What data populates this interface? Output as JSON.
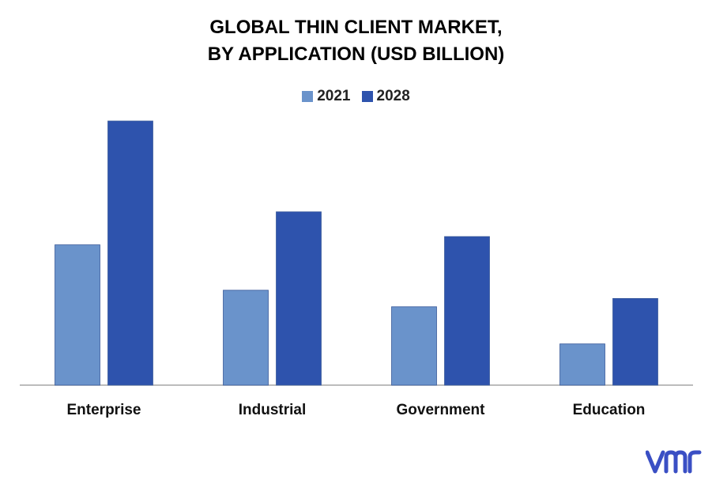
{
  "chart_data": {
    "type": "bar",
    "title_lines": [
      "GLOBAL THIN CLIENT MARKET,",
      "BY APPLICATION (USD BILLION)"
    ],
    "categories": [
      "Enterprise",
      "Industrial",
      "Government",
      "Education"
    ],
    "series": [
      {
        "name": "2021",
        "values": [
          3.4,
          2.3,
          1.9,
          1.0
        ]
      },
      {
        "name": "2028",
        "values": [
          6.4,
          4.2,
          3.6,
          2.1
        ]
      }
    ],
    "ylim": [
      0,
      6.4
    ],
    "y_axis_visible": false,
    "grid": false,
    "legend_position": "top-center",
    "colors": {
      "2021": "#6a93cb",
      "2028": "#2e53ad",
      "axis": "#a6a6a6"
    }
  },
  "logo": {
    "name": "vmr-logo",
    "color": "#3a4fc4"
  }
}
